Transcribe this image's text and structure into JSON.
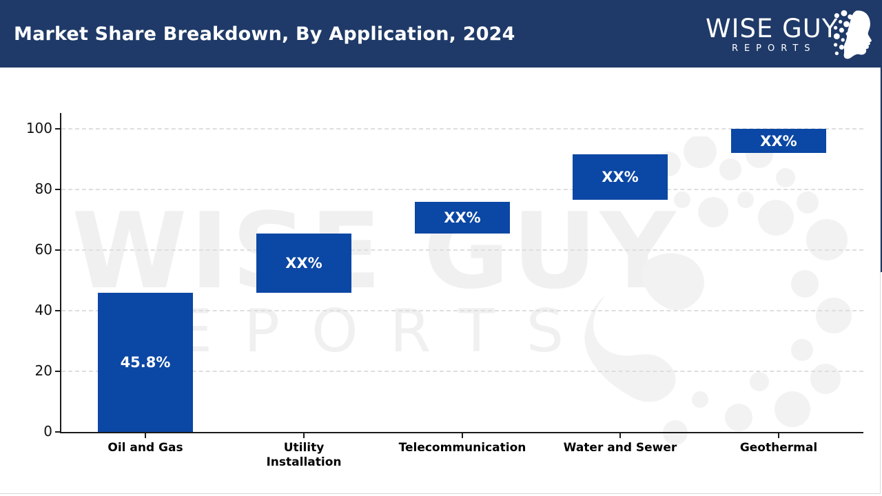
{
  "header": {
    "title": "Market Share Breakdown, By Application, 2024",
    "background_color": "#1f3a68",
    "logo": {
      "line1": "WISE GUY",
      "line2": "REPORTS"
    }
  },
  "watermark": {
    "line1": "WISE GUY",
    "line2": "REPORTS"
  },
  "chart_data": {
    "type": "bar",
    "subtype": "waterfall",
    "title": "Market Share Breakdown, By Application, 2024",
    "xlabel": "",
    "ylabel": "",
    "ylim": [
      0,
      100
    ],
    "yticks": [
      0,
      20,
      40,
      60,
      80,
      100
    ],
    "grid": "horizontal-dashed",
    "legend": "none",
    "bar_color": "#0b47a4",
    "bar_label_color": "#ffffff",
    "categories": [
      "Oil and Gas",
      "Utility\nInstallation",
      "Telecommunication",
      "Water and Sewer",
      "Geothermal"
    ],
    "segments": [
      {
        "category": "Oil and Gas",
        "start": 0,
        "end": 45.8,
        "label": "45.8%"
      },
      {
        "category": "Utility Installation",
        "start": 46.0,
        "end": 65.5,
        "label": "XX%"
      },
      {
        "category": "Telecommunication",
        "start": 65.5,
        "end": 76.0,
        "label": "XX%"
      },
      {
        "category": "Water and Sewer",
        "start": 76.5,
        "end": 91.5,
        "label": "XX%"
      },
      {
        "category": "Geothermal",
        "start": 92.0,
        "end": 100.0,
        "label": "XX%"
      }
    ]
  }
}
